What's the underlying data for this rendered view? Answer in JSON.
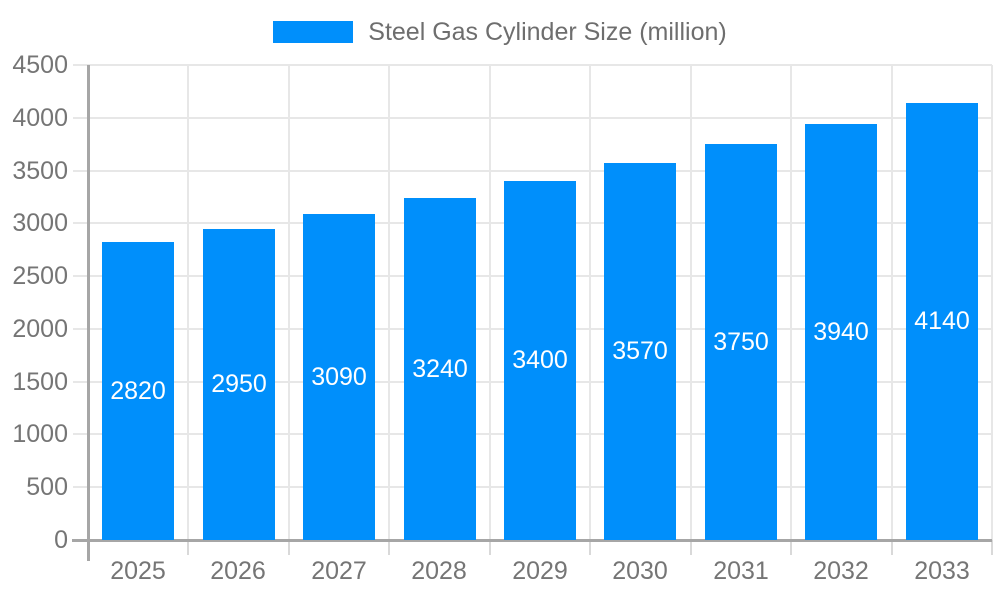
{
  "legend": {
    "label": "Steel Gas Cylinder Size (million)"
  },
  "chart_data": {
    "type": "bar",
    "title": "",
    "categories": [
      "2025",
      "2026",
      "2027",
      "2028",
      "2029",
      "2030",
      "2031",
      "2032",
      "2033"
    ],
    "series": [
      {
        "name": "Steel Gas Cylinder Size (million)",
        "values": [
          2820,
          2950,
          3090,
          3240,
          3400,
          3570,
          3750,
          3940,
          4140
        ]
      }
    ],
    "data_labels": [
      "2820",
      "2950",
      "3090",
      "3240",
      "3400",
      "3570",
      "3750",
      "3940",
      "4140"
    ],
    "xlabel": "",
    "ylabel": "",
    "ylim": [
      0,
      4500
    ],
    "ytick_step": 500,
    "y_tick_labels": [
      "0",
      "500",
      "1000",
      "1500",
      "2000",
      "2500",
      "3000",
      "3500",
      "4000",
      "4500"
    ],
    "grid": true,
    "legend_position": "top"
  },
  "colors": {
    "bar": "#008FFB",
    "data_label": "#FFFFFF",
    "grid_line": "#e7e7e7",
    "axis_line": "#a6a6a6",
    "tick": "#d9d9d9",
    "axis_text": "#757575",
    "legend_text": "#6e6e6e",
    "background": "#ffffff"
  }
}
